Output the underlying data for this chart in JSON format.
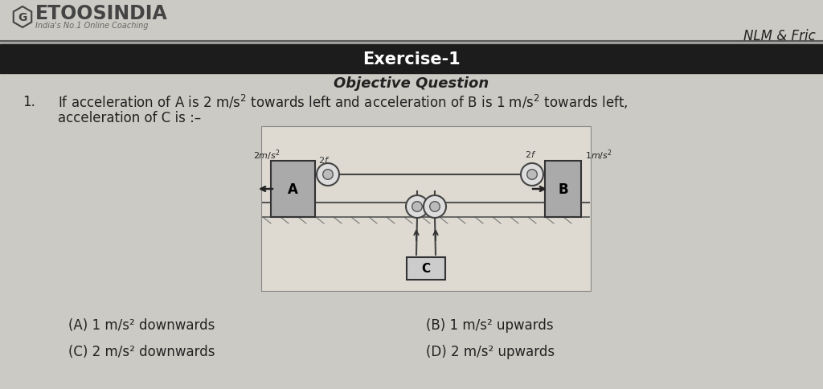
{
  "bg_color": "#cccac4",
  "header_line_color": "#555555",
  "title_bar_color": "#1c1c1c",
  "title_text": "Exercise-1",
  "title_text_color": "#ffffff",
  "subtitle_text": "Objective Question",
  "logo_text": "ETOOSINDIA",
  "logo_subtext": "India's No.1 Online Coaching",
  "top_right_text": "NLM & Fric",
  "question_number": "1.",
  "font_color": "#222222",
  "diagram_bg": "#dedad2",
  "pulley_color": "#666666",
  "block_color": "#999999",
  "rope_color": "#444444",
  "options_A": "(A) 1 m/s² downwards",
  "options_B": "(B) 1 m/s² upwards",
  "options_C": "(C) 2 m/s² downwards",
  "options_D": "(D) 2 m/s² upwards"
}
